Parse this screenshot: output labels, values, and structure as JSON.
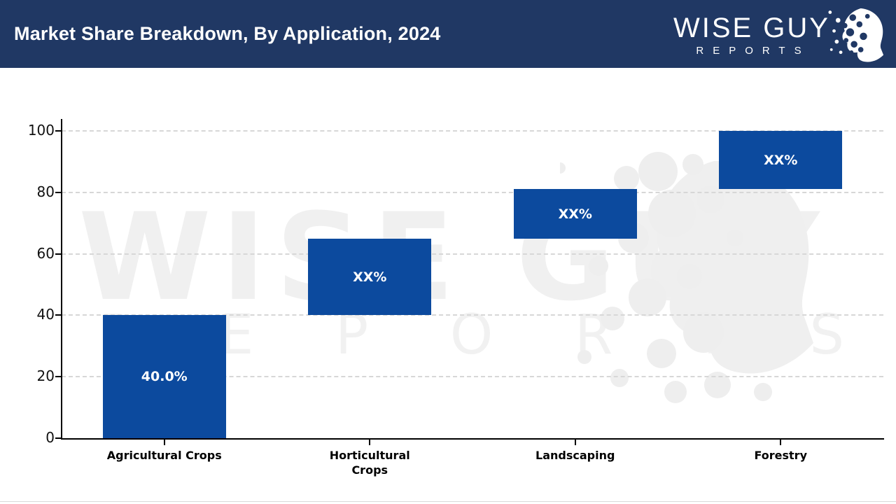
{
  "header": {
    "title": "Market Share Breakdown, By Application, 2024",
    "bg_color": "#203864",
    "logo": {
      "line1": "WISE GUY",
      "line2": "REPORTS"
    }
  },
  "watermark": {
    "line1": "WISE GUY",
    "line2": "R E P O R T S"
  },
  "chart_data": {
    "type": "bar",
    "variant": "floating-waterfall",
    "title": "Market Share Breakdown, By Application, 2024",
    "categories": [
      "Agricultural Crops",
      "Horticultural\nCrops",
      "Landscaping",
      "Forestry"
    ],
    "series": [
      {
        "name": "Market Share (%)",
        "starts": [
          0,
          40,
          65,
          81
        ],
        "ends": [
          40,
          65,
          81,
          100
        ],
        "values": [
          40,
          25,
          16,
          19
        ]
      }
    ],
    "bar_labels": [
      "40.0%",
      "XX%",
      "XX%",
      "XX%"
    ],
    "ylim": [
      0,
      100
    ],
    "yticks": [
      0,
      20,
      40,
      60,
      80,
      100
    ],
    "xlabel": "",
    "ylabel": "",
    "grid": "horizontal-dashed",
    "legend_position": "none",
    "bar_color": "#0c4a9e",
    "bar_label_color": "#ffffff",
    "gridline_color": "#d7d7d7"
  }
}
